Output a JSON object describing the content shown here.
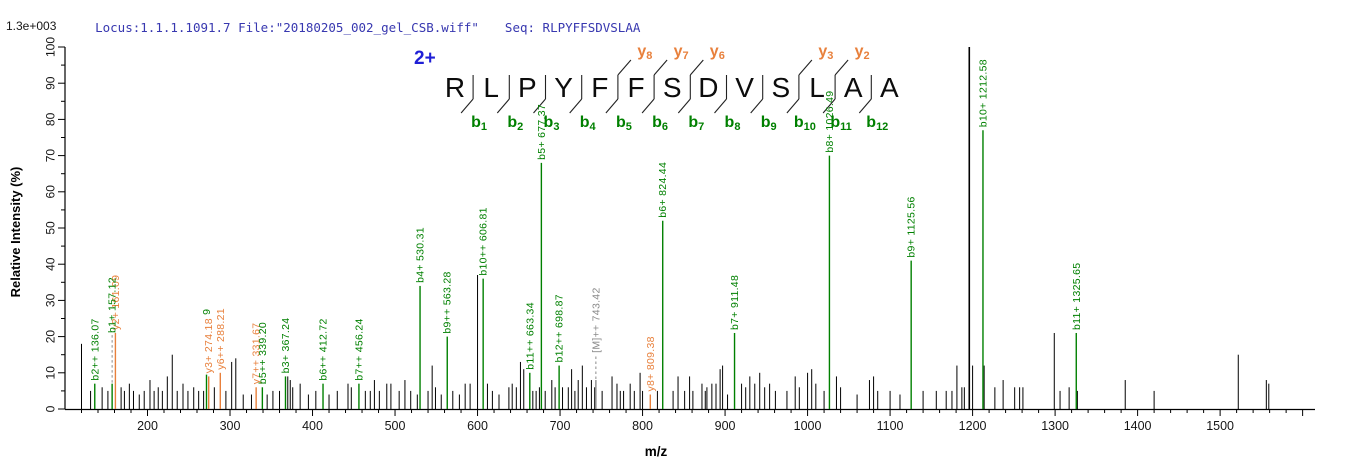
{
  "header": {
    "locus_file": "Locus:1.1.1.1091.7 File:\"20180205_002_gel_CSB.wiff\"",
    "seq_label": "Seq: RLPYFFSDVSLAA",
    "scale_label": "1.3e+003"
  },
  "colors": {
    "b_ion": "#008000",
    "y_ion": "#e8803c",
    "precursor": "#8a8a8a",
    "unassigned": "#000000",
    "header_blue": "#3838b0",
    "charge_blue": "#1f1fd6",
    "axis": "#000000",
    "sequence_text": "#0c0c0c"
  },
  "sequence_diagram": {
    "charge_label": "2+",
    "residues": [
      "R",
      "L",
      "P",
      "Y",
      "F",
      "F",
      "S",
      "D",
      "V",
      "S",
      "L",
      "A",
      "A"
    ],
    "b_labels": [
      {
        "ion": "b",
        "sub": "1",
        "cut": 1
      },
      {
        "ion": "b",
        "sub": "2",
        "cut": 2
      },
      {
        "ion": "b",
        "sub": "3",
        "cut": 3
      },
      {
        "ion": "b",
        "sub": "4",
        "cut": 4
      },
      {
        "ion": "b",
        "sub": "5",
        "cut": 5
      },
      {
        "ion": "b",
        "sub": "6",
        "cut": 6
      },
      {
        "ion": "b",
        "sub": "7",
        "cut": 7
      },
      {
        "ion": "b",
        "sub": "8",
        "cut": 8
      },
      {
        "ion": "b",
        "sub": "9",
        "cut": 9
      },
      {
        "ion": "b",
        "sub": "10",
        "cut": 10
      },
      {
        "ion": "b",
        "sub": "11",
        "cut": 11
      },
      {
        "ion": "b",
        "sub": "12",
        "cut": 12
      }
    ],
    "y_labels": [
      {
        "ion": "y",
        "sub": "8",
        "cut": 5
      },
      {
        "ion": "y",
        "sub": "7",
        "cut": 6
      },
      {
        "ion": "y",
        "sub": "6",
        "cut": 7
      },
      {
        "ion": "y",
        "sub": "3",
        "cut": 10
      },
      {
        "ion": "y",
        "sub": "2",
        "cut": 11
      }
    ]
  },
  "chart_data": {
    "type": "bar",
    "title": "MS/MS fragmentation spectrum of peptide RLPYFFSDVSLAA (2+)",
    "xlabel": "m/z",
    "ylabel": "Relative  Intensity (%)",
    "xlim": [
      100,
      1615
    ],
    "ylim": [
      0,
      100
    ],
    "x_major_tick_start": 200,
    "x_major_tick_end": 1500,
    "x_major_step": 100,
    "x_minor_step": 20,
    "y_major_step": 10,
    "y_minor_step": 5,
    "grid": false,
    "legend": false,
    "series": [
      {
        "name": "unassigned",
        "color_key": "unassigned",
        "peaks": [
          [
            120,
            18
          ],
          [
            131,
            5
          ],
          [
            145,
            6
          ],
          [
            152,
            5
          ],
          [
            168,
            6
          ],
          [
            172,
            5
          ],
          [
            178,
            7
          ],
          [
            183,
            5
          ],
          [
            190,
            4
          ],
          [
            196,
            5
          ],
          [
            203,
            8
          ],
          [
            208,
            5
          ],
          [
            213,
            6
          ],
          [
            218,
            5
          ],
          [
            224,
            9
          ],
          [
            230,
            15
          ],
          [
            236,
            5
          ],
          [
            243,
            7
          ],
          [
            249,
            5
          ],
          [
            256,
            6
          ],
          [
            262,
            5
          ],
          [
            268,
            5
          ],
          [
            281,
            6
          ],
          [
            295,
            5
          ],
          [
            302,
            13
          ],
          [
            307,
            14
          ],
          [
            316,
            4
          ],
          [
            326,
            4
          ],
          [
            345,
            4
          ],
          [
            352,
            5
          ],
          [
            360,
            5
          ],
          [
            370,
            9
          ],
          [
            373,
            8
          ],
          [
            376,
            6
          ],
          [
            385,
            7
          ],
          [
            395,
            4
          ],
          [
            404,
            5
          ],
          [
            420,
            4
          ],
          [
            430,
            5
          ],
          [
            443,
            7
          ],
          [
            447,
            6
          ],
          [
            464,
            5
          ],
          [
            470,
            5
          ],
          [
            475,
            8
          ],
          [
            481,
            5
          ],
          [
            490,
            7
          ],
          [
            495,
            7
          ],
          [
            505,
            5
          ],
          [
            512,
            8
          ],
          [
            519,
            5
          ],
          [
            527,
            4
          ],
          [
            540,
            5
          ],
          [
            545,
            12
          ],
          [
            549,
            6
          ],
          [
            556,
            4
          ],
          [
            570,
            5
          ],
          [
            578,
            4
          ],
          [
            585,
            7
          ],
          [
            591,
            7
          ],
          [
            600,
            37
          ],
          [
            612,
            7
          ],
          [
            618,
            5
          ],
          [
            626,
            4
          ],
          [
            638,
            6
          ],
          [
            642,
            7
          ],
          [
            647,
            6
          ],
          [
            652,
            13
          ],
          [
            656,
            11
          ],
          [
            667,
            5
          ],
          [
            671,
            5
          ],
          [
            675,
            6
          ],
          [
            682,
            5
          ],
          [
            690,
            8
          ],
          [
            694,
            6
          ],
          [
            703,
            6
          ],
          [
            710,
            6
          ],
          [
            714,
            11
          ],
          [
            718,
            5
          ],
          [
            722,
            8
          ],
          [
            727,
            12
          ],
          [
            732,
            6
          ],
          [
            738,
            8
          ],
          [
            742,
            6
          ],
          [
            751,
            5
          ],
          [
            763,
            9
          ],
          [
            769,
            7
          ],
          [
            773,
            5
          ],
          [
            777,
            5
          ],
          [
            785,
            7
          ],
          [
            790,
            5
          ],
          [
            797,
            10
          ],
          [
            800,
            5
          ],
          [
            818,
            5
          ],
          [
            837,
            5
          ],
          [
            843,
            9
          ],
          [
            851,
            5
          ],
          [
            857,
            9
          ],
          [
            861,
            5
          ],
          [
            872,
            7
          ],
          [
            876,
            5
          ],
          [
            878,
            6
          ],
          [
            884,
            7
          ],
          [
            889,
            7
          ],
          [
            894,
            11
          ],
          [
            897,
            12
          ],
          [
            903,
            4
          ],
          [
            920,
            7
          ],
          [
            925,
            6
          ],
          [
            930,
            9
          ],
          [
            936,
            7
          ],
          [
            942,
            10
          ],
          [
            948,
            6
          ],
          [
            954,
            7
          ],
          [
            961,
            5
          ],
          [
            975,
            5
          ],
          [
            985,
            9
          ],
          [
            990,
            6
          ],
          [
            1000,
            10
          ],
          [
            1005,
            11
          ],
          [
            1010,
            7
          ],
          [
            1020,
            5
          ],
          [
            1035,
            9
          ],
          [
            1040,
            6
          ],
          [
            1060,
            4
          ],
          [
            1075,
            8
          ],
          [
            1080,
            9
          ],
          [
            1085,
            5
          ],
          [
            1100,
            5
          ],
          [
            1112,
            4
          ],
          [
            1140,
            5
          ],
          [
            1156,
            5
          ],
          [
            1168,
            5
          ],
          [
            1175,
            5
          ],
          [
            1181,
            12
          ],
          [
            1187,
            6
          ],
          [
            1190,
            6
          ],
          [
            1196,
            100
          ],
          [
            1200,
            12
          ],
          [
            1214,
            12
          ],
          [
            1227,
            6
          ],
          [
            1237,
            8
          ],
          [
            1251,
            6
          ],
          [
            1257,
            6
          ],
          [
            1261,
            6
          ],
          [
            1299,
            21
          ],
          [
            1306,
            5
          ],
          [
            1317,
            6
          ],
          [
            1327,
            5
          ],
          [
            1385,
            8
          ],
          [
            1420,
            5
          ],
          [
            1522,
            15
          ],
          [
            1556,
            8
          ],
          [
            1559,
            7
          ]
        ]
      },
      {
        "name": "y-ions",
        "color_key": "y_ion",
        "peaks": [
          {
            "mz": 161.09,
            "i": 21,
            "label": "y2+ 161.09"
          },
          {
            "mz": 274.18,
            "i": 9,
            "label": "y3+ 274.18"
          },
          {
            "mz": 288.21,
            "i": 10,
            "label": "y6++ 288.21"
          },
          {
            "mz": 331.67,
            "i": 6,
            "label": "y7++ 331.67",
            "occluded": true
          },
          {
            "mz": 809.38,
            "i": 4,
            "label": "y8+ 809.38"
          }
        ]
      },
      {
        "name": "precursor",
        "color_key": "precursor",
        "peaks": [
          {
            "mz": 743.42,
            "i": 8,
            "label": "[M]++ 743.42",
            "label_bottom_pct": 15.5,
            "leader": true
          }
        ]
      },
      {
        "name": "b-ions",
        "color_key": "b_ion",
        "peaks": [
          {
            "mz": 136.07,
            "i": 7,
            "label": "b2++ 136.07"
          },
          {
            "mz": 157.12,
            "i": 7,
            "label": "b1+ 157.12",
            "label_bottom_pct": 21,
            "leader": true
          },
          {
            "mz": 271.5,
            "i": 9.5,
            "label": "9",
            "label_bottom_pct": 26
          },
          {
            "mz": 339.2,
            "i": 6,
            "label": "b5++ 339.20"
          },
          {
            "mz": 367.24,
            "i": 9,
            "label": "b3+ 367.24"
          },
          {
            "mz": 412.72,
            "i": 7,
            "label": "b6++ 412.72"
          },
          {
            "mz": 456.24,
            "i": 7,
            "label": "b7++ 456.24"
          },
          {
            "mz": 530.31,
            "i": 34,
            "label": "b4+ 530.31"
          },
          {
            "mz": 563.28,
            "i": 20,
            "label": "b9++ 563.28"
          },
          {
            "mz": 606.81,
            "i": 36,
            "label": "b10++ 606.81"
          },
          {
            "mz": 663.34,
            "i": 10,
            "label": "b11++ 663.34"
          },
          {
            "mz": 677.37,
            "i": 68,
            "label": "b5+ 677.37"
          },
          {
            "mz": 698.87,
            "i": 12,
            "label": "b12++ 698.87"
          },
          {
            "mz": 824.44,
            "i": 52,
            "label": "b6+ 824.44"
          },
          {
            "mz": 911.48,
            "i": 21,
            "label": "b7+ 911.48"
          },
          {
            "mz": 1026.49,
            "i": 70,
            "label": "b8+ 1026.49"
          },
          {
            "mz": 1125.56,
            "i": 41,
            "label": "b9+ 1125.56"
          },
          {
            "mz": 1212.58,
            "i": 77,
            "label": "b10+ 1212.58"
          },
          {
            "mz": 1325.65,
            "i": 21,
            "label": "b11+ 1325.65"
          }
        ]
      }
    ]
  }
}
